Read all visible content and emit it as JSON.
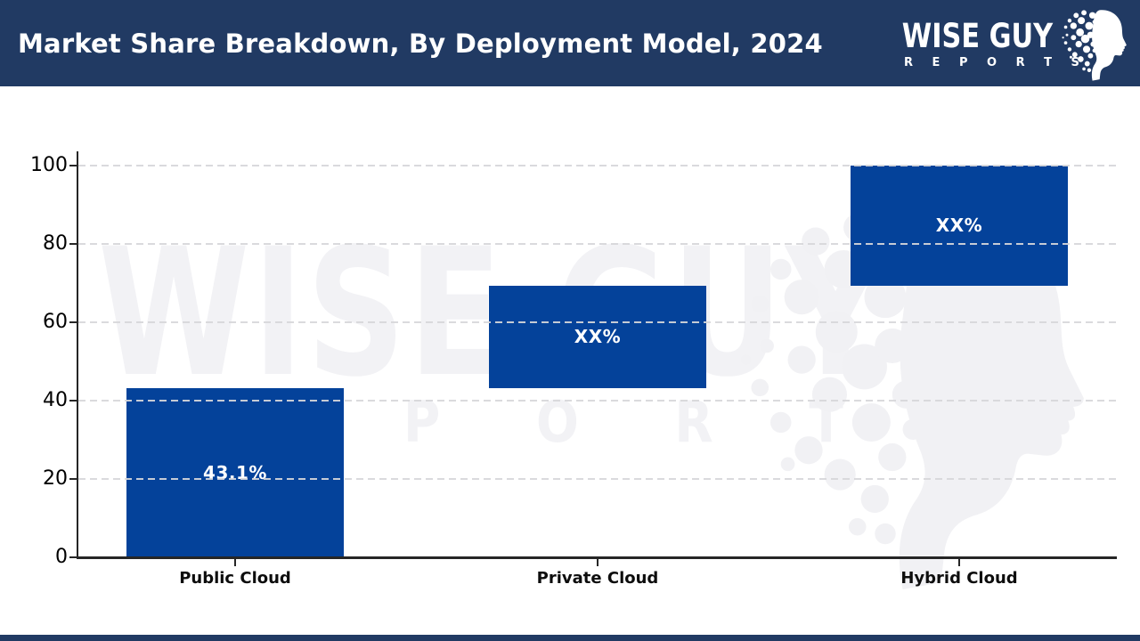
{
  "header": {
    "title": "Market Share Breakdown, By Deployment Model, 2024",
    "logo": {
      "line1": "WISE GUY",
      "line2": "R E P O R T S"
    }
  },
  "watermark": {
    "line1": "WISE GUY",
    "line2": "R E P O R T S"
  },
  "chart_data": {
    "type": "bar",
    "subtype": "waterfall",
    "title": "Market Share Breakdown, By Deployment Model, 2024",
    "categories": [
      "Public Cloud",
      "Private Cloud",
      "Hybrid Cloud"
    ],
    "segments": [
      {
        "category": "Public Cloud",
        "start": 0,
        "end": 43.1,
        "label": "43.1%"
      },
      {
        "category": "Private Cloud",
        "start": 43.1,
        "end": 69.4,
        "label": "XX%"
      },
      {
        "category": "Hybrid Cloud",
        "start": 69.4,
        "end": 100,
        "label": "XX%"
      }
    ],
    "xlabel": "",
    "ylabel": "",
    "ylim": [
      0,
      100
    ],
    "yticks": [
      0,
      20,
      40,
      60,
      80,
      100
    ],
    "grid": "horizontal-dashed",
    "legend": "none",
    "bar_color": "#04429a",
    "bar_label_color": "#ffffff",
    "grid_color": "#d9d9d9",
    "axis_color": "#262626",
    "header_color": "#213a63",
    "background_color": "#ffffff"
  }
}
